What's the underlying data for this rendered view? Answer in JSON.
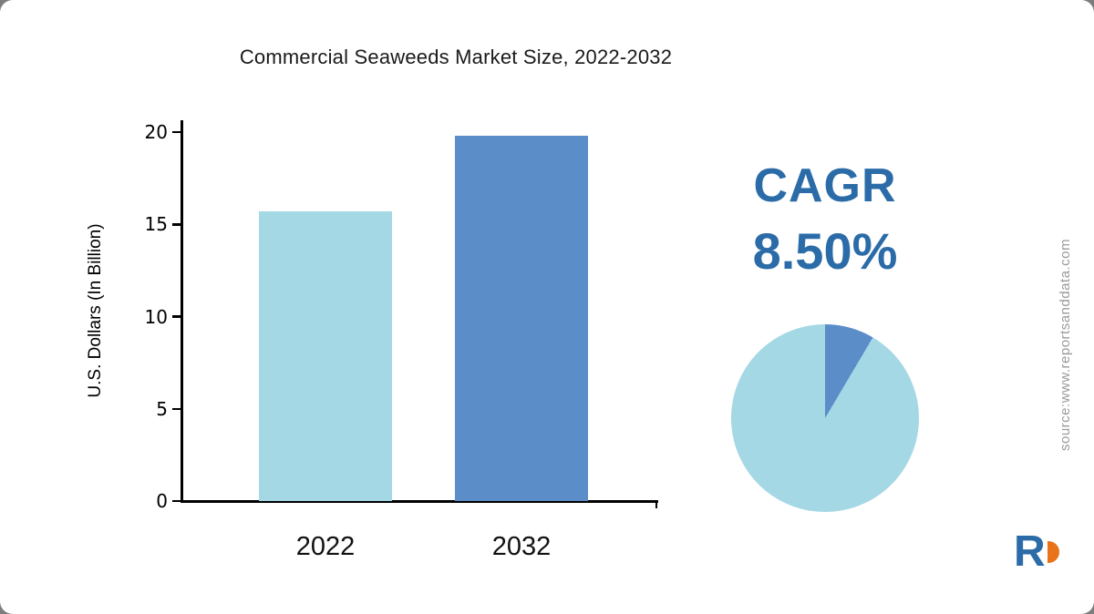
{
  "title": "Commercial Seaweeds Market Size, 2022-2032",
  "chart_data": {
    "type": "bar",
    "categories": [
      "2022",
      "2032"
    ],
    "values": [
      15.7,
      19.8
    ],
    "title": "Commercial Seaweeds Market Size, 2022-2032",
    "xlabel": "",
    "ylabel": "U.S. Dollars (In Billion)",
    "ylim": [
      0,
      20
    ],
    "yticks": [
      0,
      5,
      10,
      15,
      20
    ],
    "bar_colors": [
      "#a4d8e4",
      "#5b8dc8"
    ],
    "grid": false,
    "legend_position": "none"
  },
  "cagr": {
    "label": "CAGR",
    "value": "8.50%",
    "text_color": "#2b6ca8",
    "pie": {
      "percent": 8.5,
      "slice_color": "#5b8dc8",
      "remainder_color": "#a4d8e4"
    }
  },
  "source": "source:www.reportsanddata.com",
  "logo": {
    "letter": "R",
    "letter_color": "#2b6ca8",
    "accent_color": "#e8731a"
  }
}
